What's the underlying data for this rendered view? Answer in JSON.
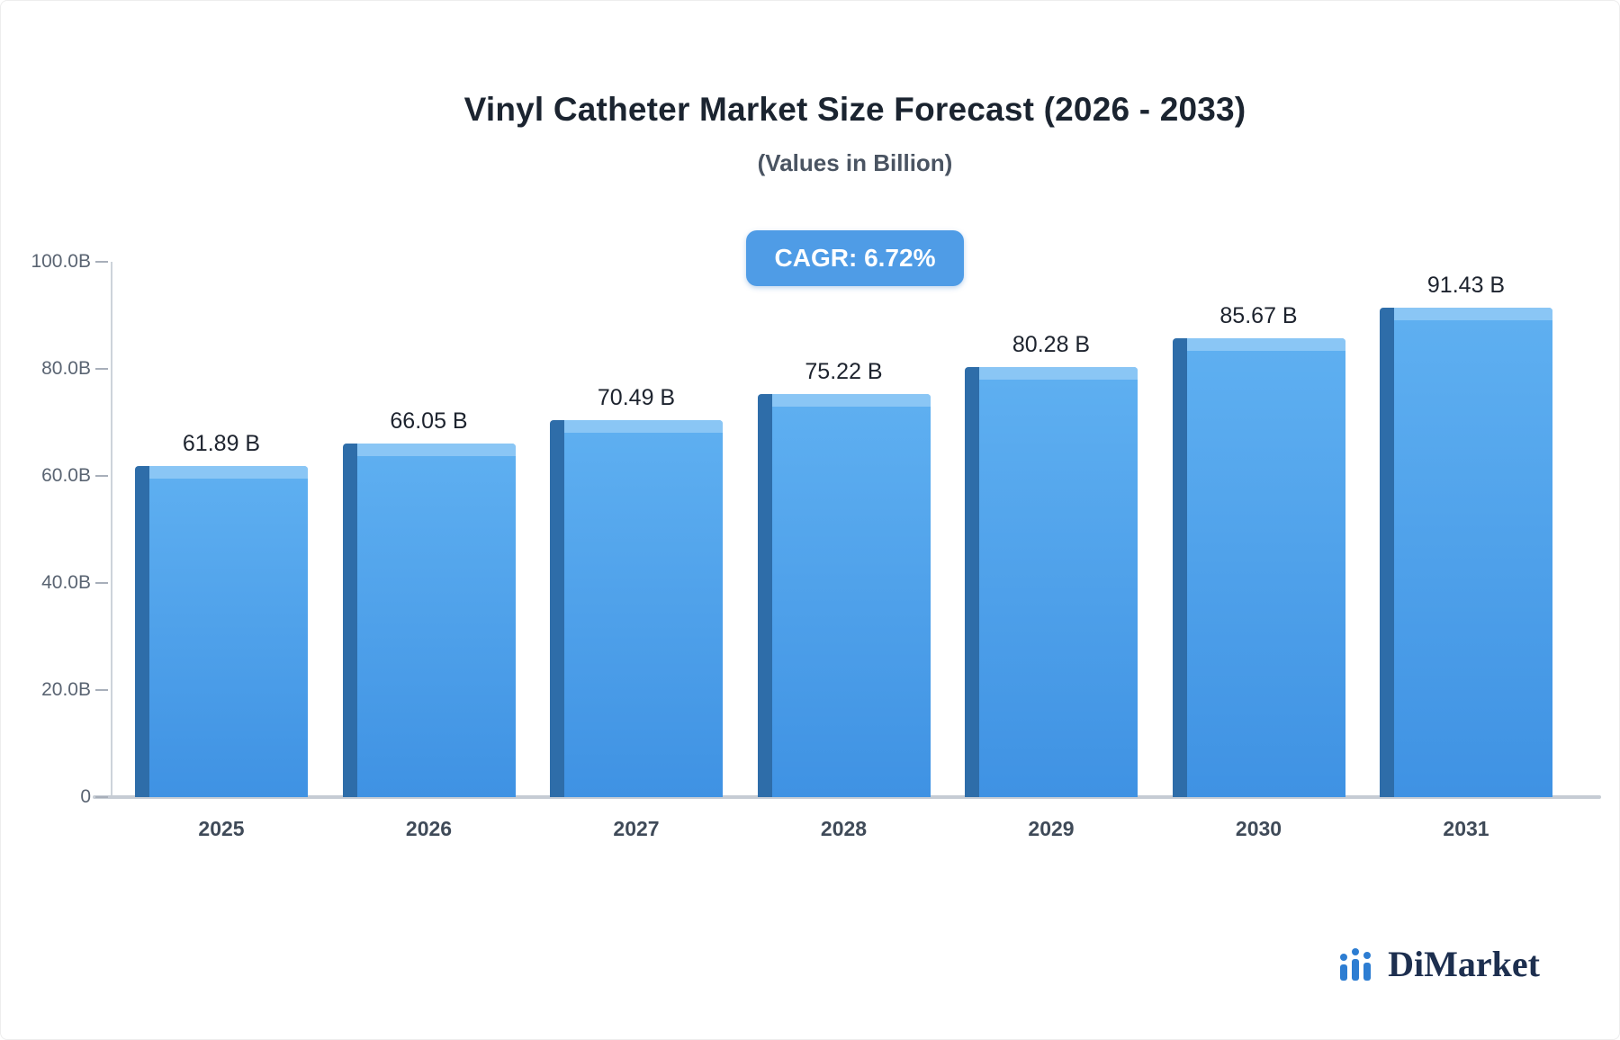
{
  "title": "Vinyl Catheter Market Size Forecast (2026 - 2033)",
  "subtitle": "(Values in Billion)",
  "cagr_label": "CAGR: 6.72%",
  "brand": {
    "name": "DiMarket"
  },
  "colors": {
    "bar_main": "#4a9fe8",
    "bar_side": "#2e6da9",
    "bar_highlight": "#8ac6f5",
    "badge_bg": "#4f9ce6",
    "axis": "#c6ccd4",
    "title_text": "#1b2430",
    "brand_text": "#1d2f4f"
  },
  "chart_data": {
    "type": "bar",
    "categories": [
      "2025",
      "2026",
      "2027",
      "2028",
      "2029",
      "2030",
      "2031"
    ],
    "values": [
      61.89,
      66.05,
      70.49,
      75.22,
      80.28,
      85.67,
      91.43
    ],
    "value_labels": [
      "61.89 B",
      "66.05 B",
      "70.49 B",
      "75.22 B",
      "80.28 B",
      "85.67 B",
      "91.43 B"
    ],
    "title": "Vinyl Catheter Market Size Forecast (2026 - 2033)",
    "xlabel": "",
    "ylabel": "",
    "ylim": [
      0,
      100
    ],
    "y_tick_values": [
      100,
      80,
      60,
      40,
      20,
      0
    ],
    "y_tick_labels": [
      "100.0B",
      "80.0B",
      "60.0B",
      "40.0B",
      "20.0B",
      "0"
    ],
    "grid": false,
    "legend": null
  }
}
